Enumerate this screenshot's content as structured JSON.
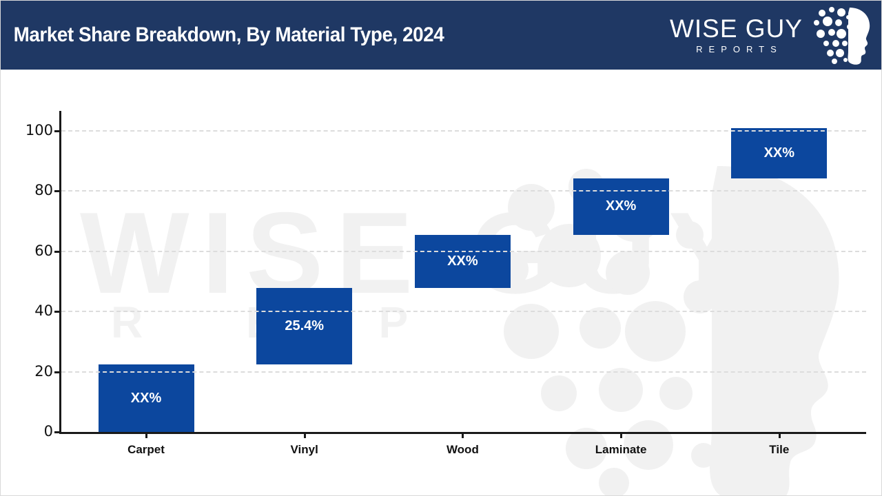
{
  "header": {
    "title": "Market Share Breakdown, By Material Type, 2024",
    "logo": {
      "line1": "WISE GUY",
      "line2": "REPORTS"
    }
  },
  "watermark": {
    "line1": "WISE GUY",
    "line2": "R E P O R T S"
  },
  "colors": {
    "header_bg": "#1f3864",
    "bar": "#0c479e",
    "grid": "#dcdcdc",
    "axis": "#1a1a1a",
    "bar_label": "#ffffff",
    "watermark": "#f1f1f1"
  },
  "chart_data": {
    "type": "bar",
    "variant": "waterfall",
    "title": "Market Share Breakdown, By Material Type, 2024",
    "categories": [
      "Carpet",
      "Vinyl",
      "Wood",
      "Laminate",
      "Tile"
    ],
    "bars": [
      {
        "category": "Carpet",
        "start": 0,
        "end": 22.4,
        "label": "XX%"
      },
      {
        "category": "Vinyl",
        "start": 22.4,
        "end": 47.8,
        "label": "25.4%"
      },
      {
        "category": "Wood",
        "start": 47.8,
        "end": 65.4,
        "label": "XX%"
      },
      {
        "category": "Laminate",
        "start": 65.4,
        "end": 84.2,
        "label": "XX%"
      },
      {
        "category": "Tile",
        "start": 84.2,
        "end": 100.8,
        "label": "XX%"
      }
    ],
    "xlabel": "",
    "ylabel": "",
    "yticks": [
      0,
      20,
      40,
      60,
      80,
      100
    ],
    "ylim": [
      0,
      106
    ],
    "grid": "horizontal-dashed",
    "legend": "none"
  }
}
